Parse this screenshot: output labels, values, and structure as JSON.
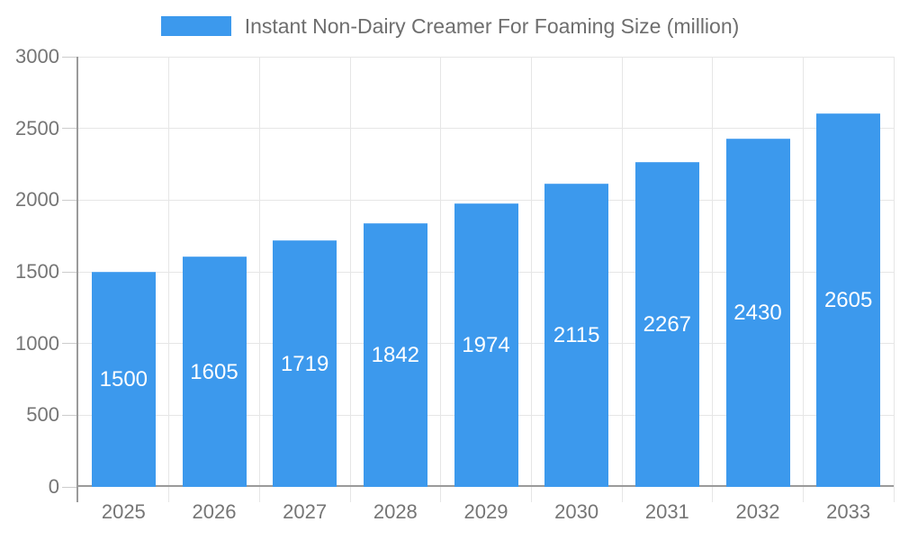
{
  "legend": {
    "label": "Instant Non-Dairy Creamer For Foaming Size (million)"
  },
  "chart_data": {
    "type": "bar",
    "title": "Instant Non-Dairy Creamer For Foaming Size (million)",
    "categories": [
      "2025",
      "2026",
      "2027",
      "2028",
      "2029",
      "2030",
      "2031",
      "2032",
      "2033"
    ],
    "series": [
      {
        "name": "Instant Non-Dairy Creamer For Foaming Size (million)",
        "values": [
          1500,
          1605,
          1719,
          1842,
          1974,
          2115,
          2267,
          2430,
          2605
        ]
      }
    ],
    "xlabel": "",
    "ylabel": "",
    "ylim": [
      0,
      3000
    ],
    "yticks": [
      0,
      500,
      1000,
      1500,
      2000,
      2500,
      3000
    ],
    "grid": "both",
    "legend_position": "top",
    "bar_value_labels": "inside-centered"
  },
  "colors": {
    "bar": "#3C99ED",
    "bar_edge": "#63ADF1",
    "bar_label": "#FFFFFF",
    "axis_line": "#9A9A9A",
    "gridline": "#E6E6E6",
    "tick": "#CCCCCC",
    "axis_text": "#757575",
    "legend_text": "#6E6E6E",
    "background": "#FFFFFF"
  }
}
